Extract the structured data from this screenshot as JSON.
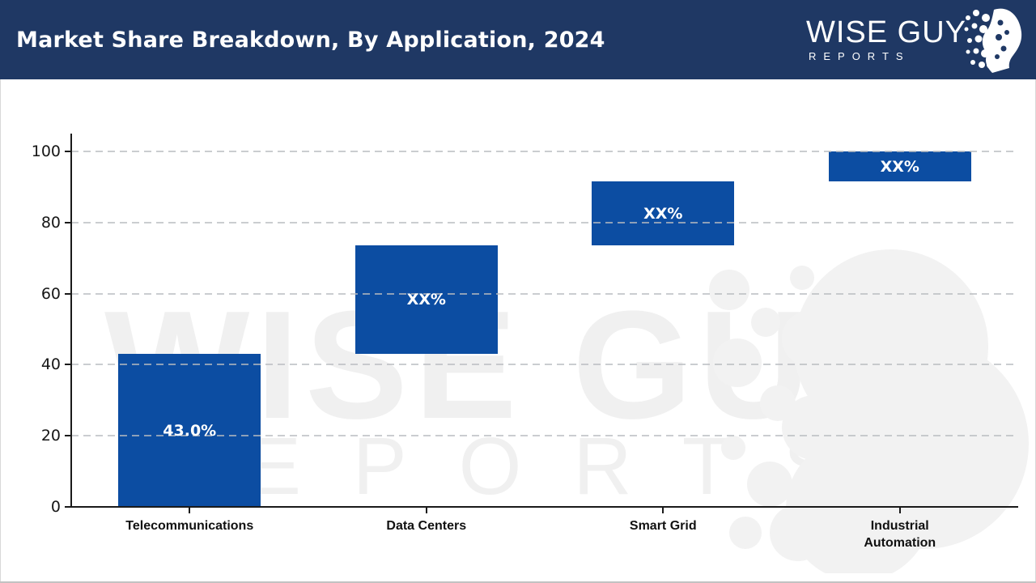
{
  "header": {
    "background": "#1f3864",
    "title": "Market Share Breakdown, By Application, 2024",
    "logo": {
      "line1": "WISE GUY",
      "line2": "REPORTS"
    }
  },
  "watermark": {
    "line1": "WISE GUY",
    "line2": "REPORTS",
    "color": "#f0f0f0"
  },
  "chart_data": {
    "type": "waterfall",
    "title": "Market Share Breakdown, By Application, 2024",
    "xlabel": "",
    "ylabel": "",
    "categories": [
      "Telecommunications",
      "Data Centers",
      "Smart Grid",
      "Industrial\nAutomation"
    ],
    "segments": [
      {
        "category": "Telecommunications",
        "label": "43.0%",
        "start": 0,
        "end": 43,
        "value": 43.0
      },
      {
        "category": "Data Centers",
        "label": "XX%",
        "start": 43,
        "end": 73.5,
        "value_estimated": 30.5
      },
      {
        "category": "Smart Grid",
        "label": "XX%",
        "start": 73.5,
        "end": 91.5,
        "value_estimated": 18.0
      },
      {
        "category": "Industrial Automation",
        "label": "XX%",
        "start": 91.5,
        "end": 100,
        "value_estimated": 8.5
      }
    ],
    "yticks": [
      0,
      20,
      40,
      60,
      80,
      100
    ],
    "ylim": [
      0,
      105
    ],
    "grid": "horizontal-dashed",
    "legend": "none",
    "bar_color": "#0c4da2",
    "bar_label_color": "#ffffff",
    "gridline_color": "#d9d9d9",
    "axis_color": "#1a1a1a"
  }
}
